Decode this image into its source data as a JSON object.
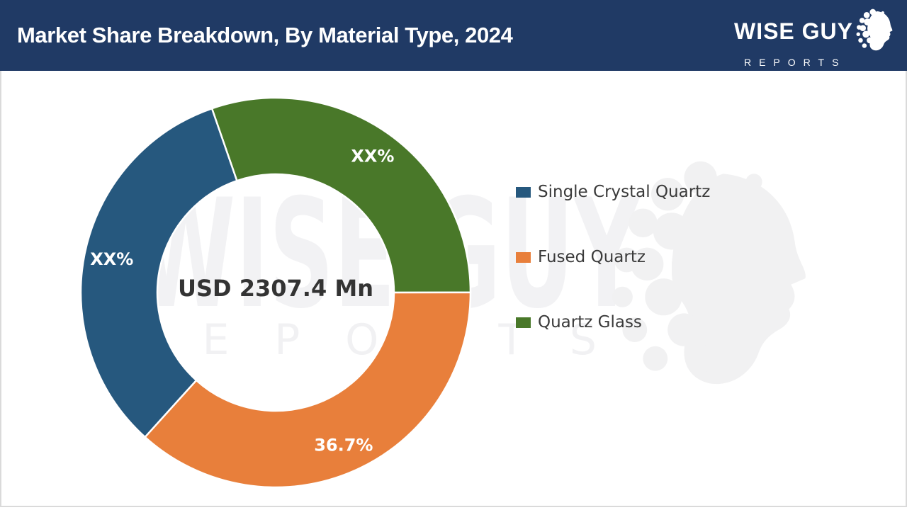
{
  "header": {
    "title": "Market Share Breakdown, By Material Type, 2024",
    "bg_color": "#203A65",
    "logo": {
      "name": "WISE GUY",
      "tagline": "REPORTS"
    }
  },
  "watermark": {
    "word": "WISE GUY",
    "letters": "REPORTS"
  },
  "chart_data": {
    "type": "donut",
    "title": "Market Share Breakdown, By Material Type, 2024",
    "center_label": "USD 2307.4 Mn",
    "start_angle_cw_from_top_deg": -19.1,
    "outer_radius_px": 275,
    "inner_radius_px": 167,
    "segments": [
      {
        "name": "Quartz Glass",
        "label": "XX%",
        "percent": 30.3,
        "color": "#497829"
      },
      {
        "name": "Fused Quartz",
        "label": "36.7%",
        "percent": 36.7,
        "color": "#E87F3B"
      },
      {
        "name": "Single Crystal Quartz",
        "label": "XX%",
        "percent": 33.0,
        "color": "#26587E"
      }
    ],
    "legend": [
      {
        "label": "Single Crystal Quartz",
        "color": "#26587E"
      },
      {
        "label": "Fused Quartz",
        "color": "#E87F3B"
      },
      {
        "label": "Quartz Glass",
        "color": "#497829"
      }
    ],
    "legend_position": "right"
  }
}
